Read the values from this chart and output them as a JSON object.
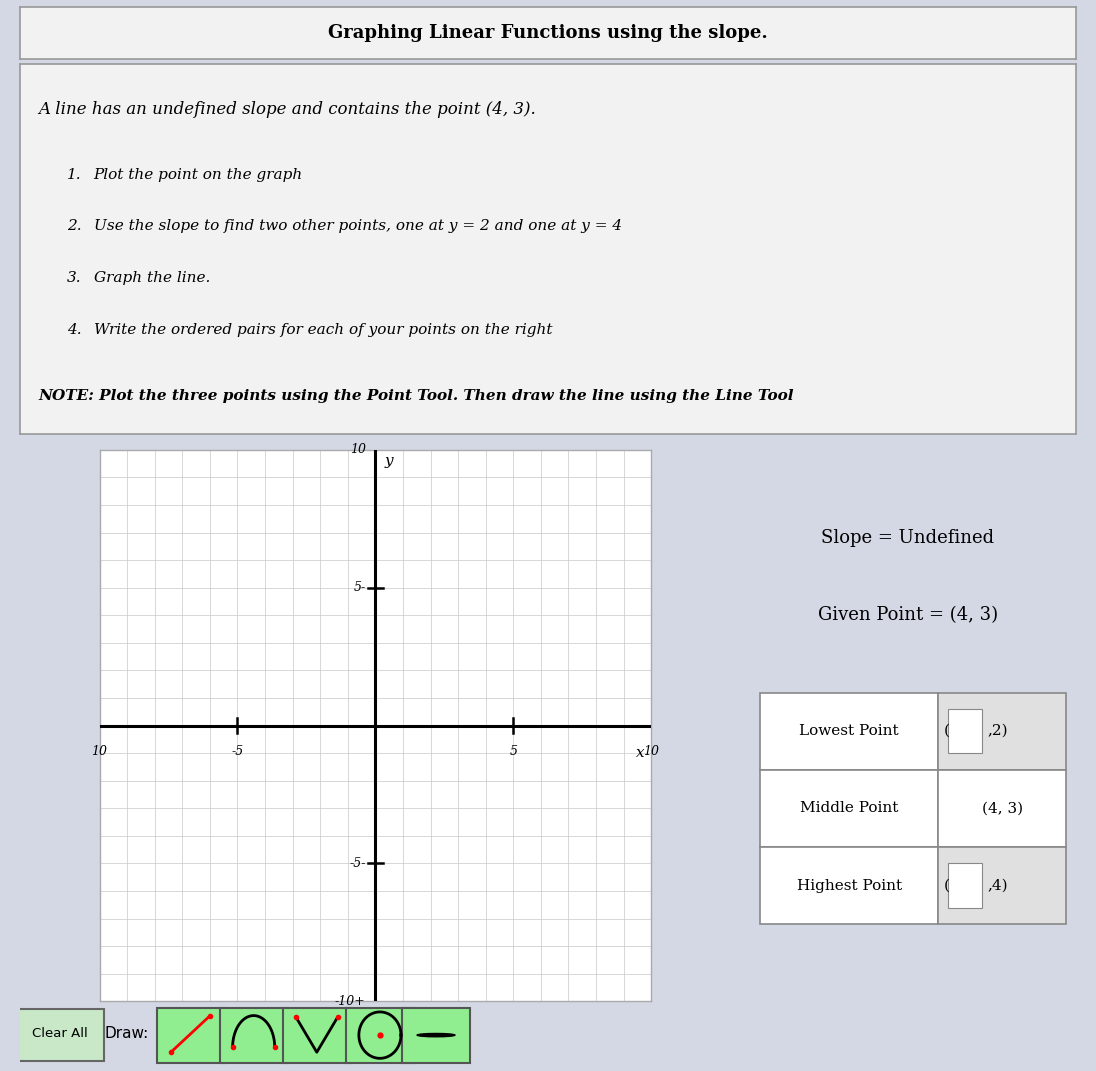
{
  "title": "Graphing Linear Functions using the slope.",
  "problem_text": "A line has an undefined slope and contains the point (4, 3).",
  "instructions": [
    "Plot the point on the graph",
    "Use the slope to find two other points, one at y = 2 and one at y = 4",
    "Graph the line.",
    "Write the ordered pairs for each of your points on the right"
  ],
  "note": "NOTE: Plot the three points using the Point Tool. Then draw the line using the Line Tool",
  "slope_text": "Slope = Undefined",
  "given_point_text": "Given Point = (4, 3)",
  "lowest_label": "Lowest Point",
  "lowest_value": "( □  ,2)",
  "middle_label": "Middle Point",
  "middle_value": "(4, 3)",
  "highest_label": "Highest Point",
  "highest_value": "( □  ,4)",
  "bg_color": "#d4d8e4",
  "panel_color": "#f2f2f2",
  "graph_bg": "#ffffff",
  "grid_color": "#c8c8c8",
  "clear_all_text": "Clear All",
  "draw_text": "Draw:"
}
